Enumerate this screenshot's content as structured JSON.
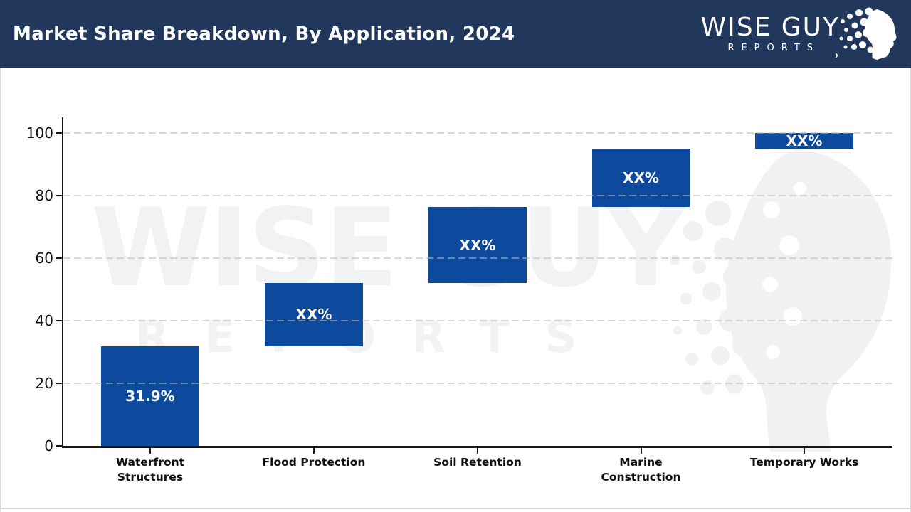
{
  "header": {
    "title": "Market Share Breakdown, By Application, 2024",
    "logo": {
      "line1": "WISE GUY",
      "line2": "REPORTS"
    }
  },
  "watermark": {
    "line1": "WISE GUY",
    "line2": "REPORTS"
  },
  "chart_data": {
    "type": "bar",
    "subtype": "waterfall-floating-bars",
    "title": "Market Share Breakdown, By Application, 2024",
    "categories": [
      "Waterfront Structures",
      "Flood Protection",
      "Soil Retention",
      "Marine Construction",
      "Temporary Works"
    ],
    "category_lines": [
      [
        "Waterfront",
        "Structures"
      ],
      [
        "Flood Protection"
      ],
      [
        "Soil Retention"
      ],
      [
        "Marine",
        "Construction"
      ],
      [
        "Temporary Works"
      ]
    ],
    "segments": [
      {
        "category": "Waterfront Structures",
        "start": 0,
        "end": 31.9,
        "label": "31.9%"
      },
      {
        "category": "Flood Protection",
        "start": 31.9,
        "end": 52.0,
        "label": "XX%"
      },
      {
        "category": "Soil Retention",
        "start": 52.0,
        "end": 76.3,
        "label": "XX%"
      },
      {
        "category": "Marine Construction",
        "start": 76.3,
        "end": 95.0,
        "label": "XX%"
      },
      {
        "category": "Temporary Works",
        "start": 95.0,
        "end": 100.0,
        "label": "XX%"
      }
    ],
    "yticks": [
      0,
      20,
      40,
      60,
      80,
      100
    ],
    "ylim": [
      0,
      105
    ],
    "xlabel": "",
    "ylabel": "",
    "grid": true,
    "gridline_style": "dashed",
    "legend": "none",
    "bar_color": "#0d4a9d",
    "bar_label_color": "#ffffff",
    "axis_color": "#1a1a1a",
    "gridline_color": "#d9d9d9"
  },
  "colors": {
    "header_bg": "#21375c",
    "bar": "#0d4a9d",
    "watermark": "#f1f2f3",
    "frame_border": "#d9d9d9"
  }
}
